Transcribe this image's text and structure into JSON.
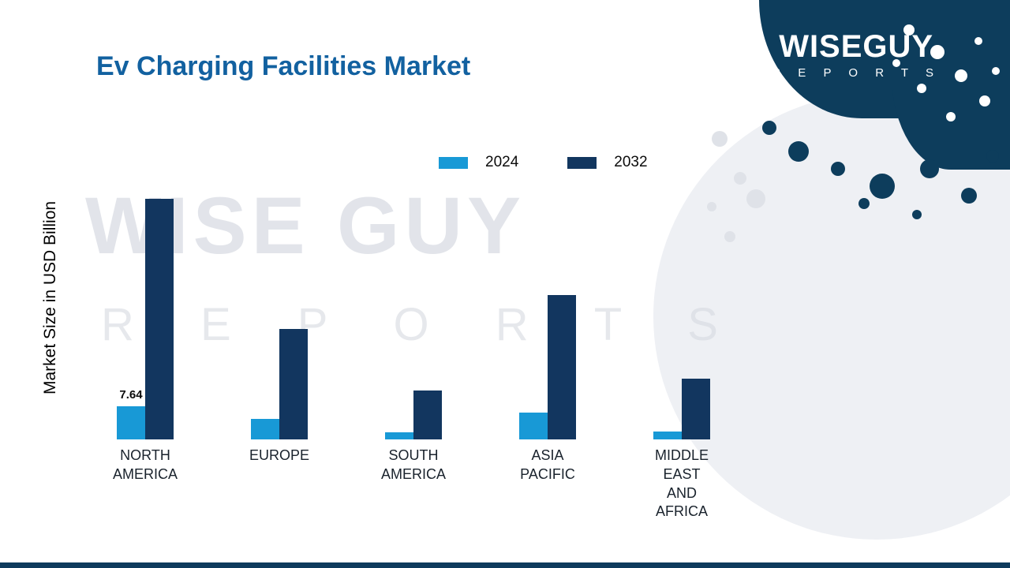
{
  "title": "Ev Charging Facilities Market",
  "logo": {
    "name_line": "WISEGUY",
    "reports_line": "R E P O R T S"
  },
  "watermark": {
    "line1": "WISE GUY",
    "line2": "REPORTS"
  },
  "chart_data": {
    "type": "bar",
    "title": "Ev Charging Facilities Market",
    "ylabel": "Market Size in USD Billion",
    "xlabel": "",
    "ylim": [
      0,
      60
    ],
    "grid": false,
    "legend_position": "top-right",
    "categories": [
      "NORTH AMERICA",
      "EUROPE",
      "SOUTH AMERICA",
      "ASIA PACIFIC",
      "MIDDLE EAST AND AFRICA"
    ],
    "category_labels": [
      [
        "NORTH",
        "AMERICA"
      ],
      [
        "EUROPE"
      ],
      [
        "SOUTH",
        "AMERICA"
      ],
      [
        "ASIA",
        "PACIFIC"
      ],
      [
        "MIDDLE",
        "EAST",
        "AND",
        "AFRICA"
      ]
    ],
    "series": [
      {
        "name": "2024",
        "color": "#1899d6",
        "values": [
          7.64,
          4.7,
          1.6,
          6.2,
          1.8
        ]
      },
      {
        "name": "2032",
        "color": "#12365f",
        "values": [
          55.5,
          25.5,
          11.3,
          33.3,
          14.0
        ]
      }
    ],
    "annotations": [
      {
        "series": "2024",
        "category": "NORTH AMERICA",
        "text": "7.64"
      }
    ]
  }
}
